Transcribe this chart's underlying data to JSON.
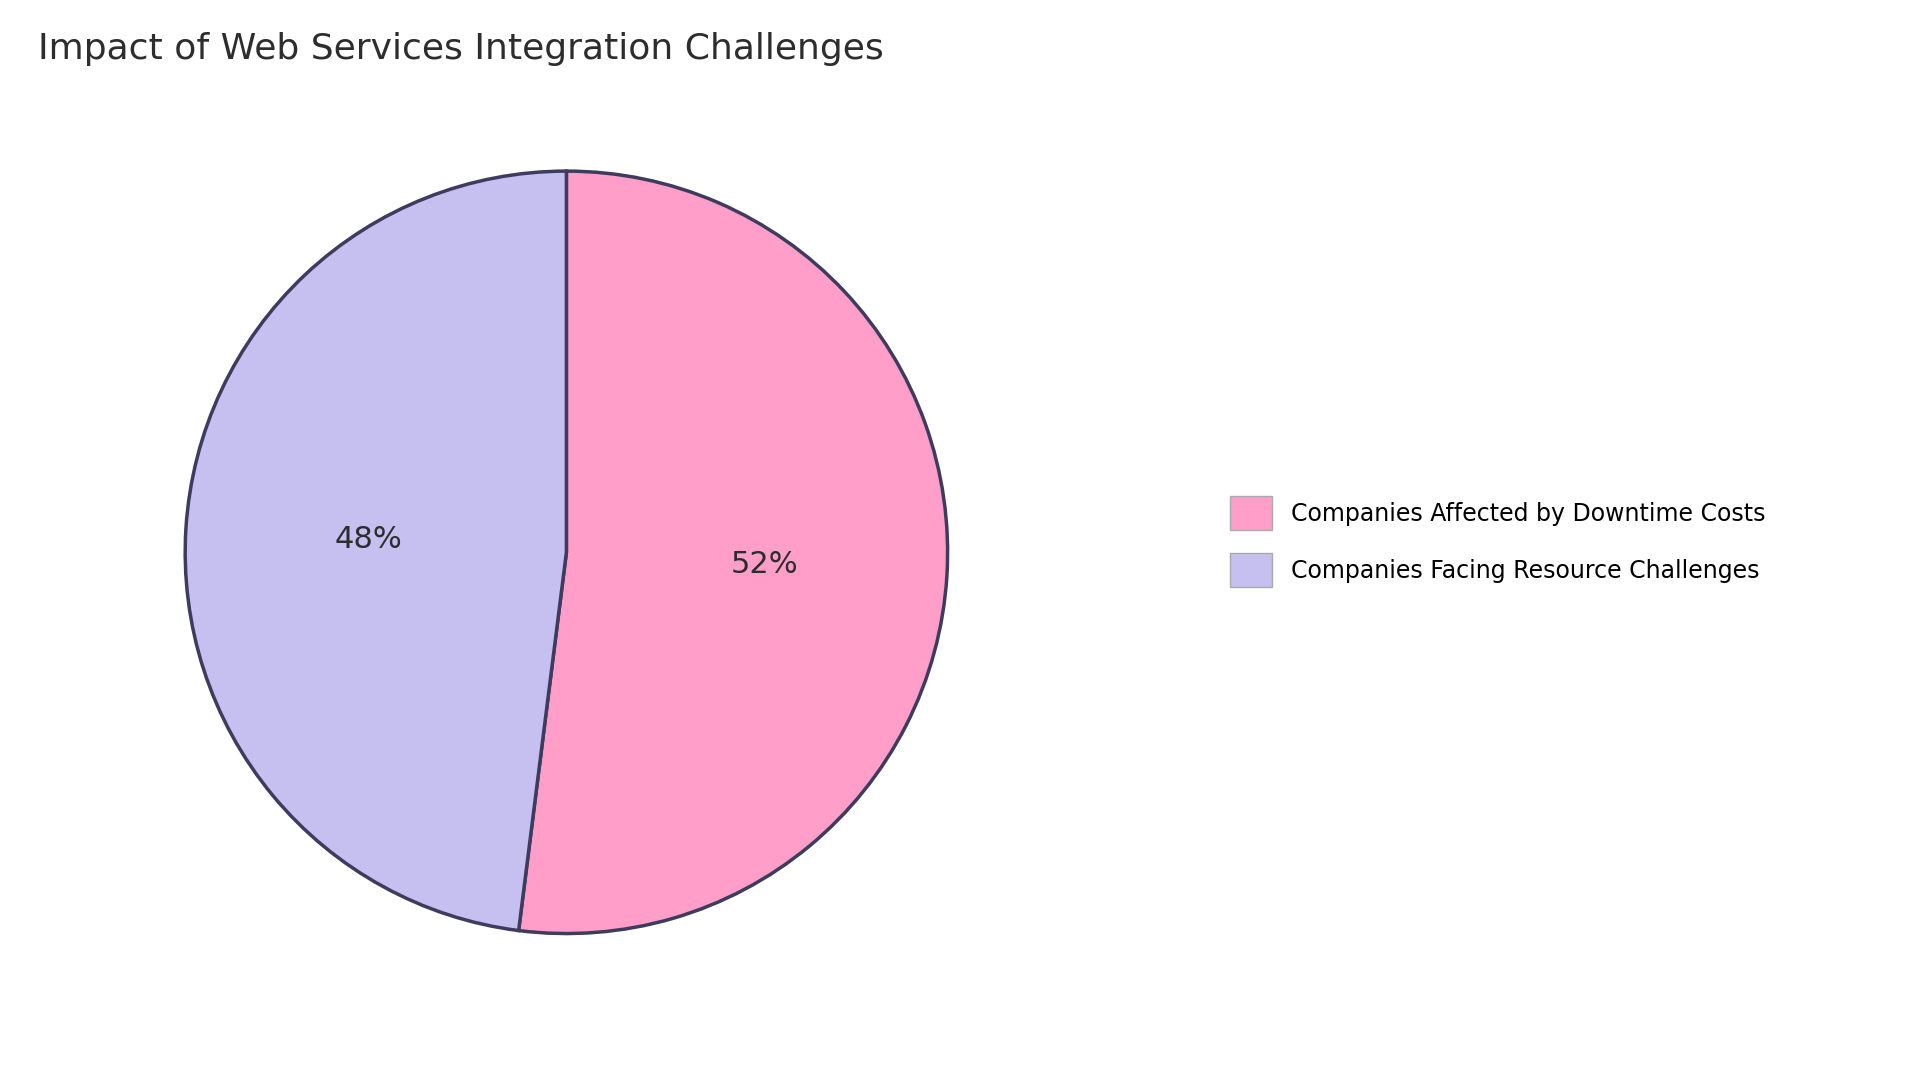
{
  "title": "Impact of Web Services Integration Challenges",
  "slices": [
    52,
    48
  ],
  "labels": [
    "Companies Affected by Downtime Costs",
    "Companies Facing Resource Challenges"
  ],
  "colors": [
    "#FF9EC8",
    "#C5C0F0"
  ],
  "edge_color": "#3D3B5E",
  "edge_width": 2.5,
  "text_labels": [
    "52%",
    "48%"
  ],
  "text_color": "#2d2d2d",
  "text_fontsize": 22,
  "title_fontsize": 26,
  "background_color": "#ffffff",
  "startangle": 90,
  "legend_fontsize": 17
}
